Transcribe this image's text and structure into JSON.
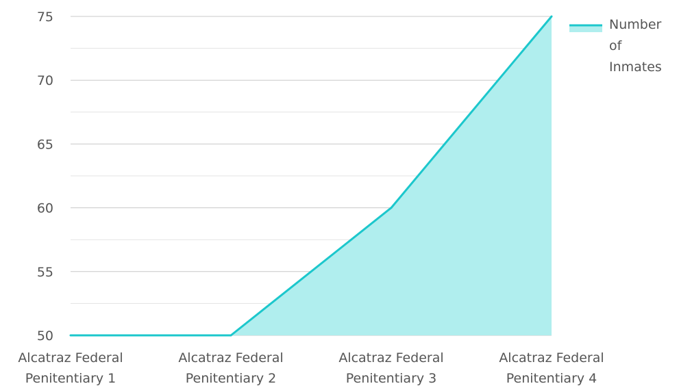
{
  "chart_data": {
    "type": "area",
    "categories": [
      [
        "Alcatraz Federal",
        "Penitentiary 1"
      ],
      [
        "Alcatraz Federal",
        "Penitentiary 2"
      ],
      [
        "Alcatraz Federal",
        "Penitentiary 3"
      ],
      [
        "Alcatraz Federal",
        "Penitentiary 4"
      ]
    ],
    "series": [
      {
        "name": "Number of Inmates",
        "values": [
          50,
          50,
          60,
          75
        ]
      }
    ],
    "legend": {
      "position": "right",
      "label_lines": [
        "Number",
        "of",
        "Inmates"
      ]
    },
    "ylim": [
      50,
      75
    ],
    "yticks": [
      50,
      55,
      60,
      65,
      70,
      75
    ],
    "grid": true,
    "colors": {
      "line": "#1cc7cc",
      "fill": "#b0eeee",
      "grid": "#cfcfcf",
      "text": "#555555"
    }
  }
}
